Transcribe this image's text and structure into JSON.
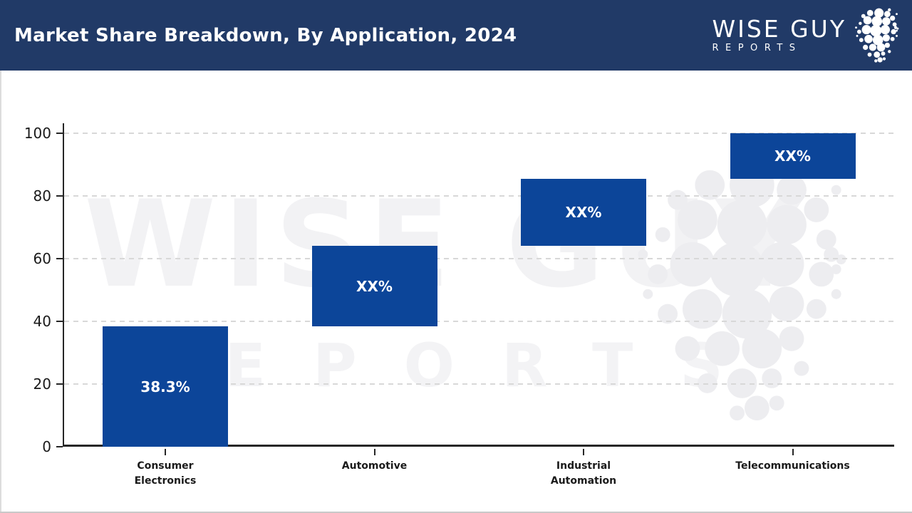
{
  "header": {
    "title": "Market Share Breakdown, By Application, 2024",
    "bg_color": "#213a67",
    "logo": {
      "wordmark": "WISE GUY",
      "subtext": "REPORTS"
    }
  },
  "watermark": {
    "wordmark": "WISE GUY",
    "subtext": "REPORTS"
  },
  "chart_data": {
    "type": "bar",
    "subtype": "waterfall-segments",
    "title": "Market Share Breakdown, By Application, 2024",
    "categories": [
      "Consumer Electronics",
      "Automotive",
      "Industrial Automation",
      "Telecommunications"
    ],
    "category_label_lines": [
      [
        "Consumer",
        "Electronics"
      ],
      [
        "Automotive"
      ],
      [
        "Industrial",
        "Automation"
      ],
      [
        "Telecommunications"
      ]
    ],
    "segments": [
      {
        "category": "Consumer Electronics",
        "start": 0,
        "end": 38.3,
        "label": "38.3%"
      },
      {
        "category": "Automotive",
        "start": 38.3,
        "end": 64.0,
        "label": "XX%"
      },
      {
        "category": "Industrial Automation",
        "start": 64.0,
        "end": 85.5,
        "label": "XX%"
      },
      {
        "category": "Telecommunications",
        "start": 85.5,
        "end": 100.0,
        "label": "XX%"
      }
    ],
    "xlabel": "",
    "ylabel": "",
    "ylim": [
      0,
      100
    ],
    "yticks": [
      0,
      20,
      40,
      60,
      80,
      100
    ],
    "grid": "horizontal-dashed",
    "legend": "none",
    "bar_color": "#0c4599",
    "bar_label_color": "#ffffff",
    "axis_color": "#262626",
    "grid_color": "#d8d8d8",
    "tick_label_color": "#1a1a1a"
  }
}
